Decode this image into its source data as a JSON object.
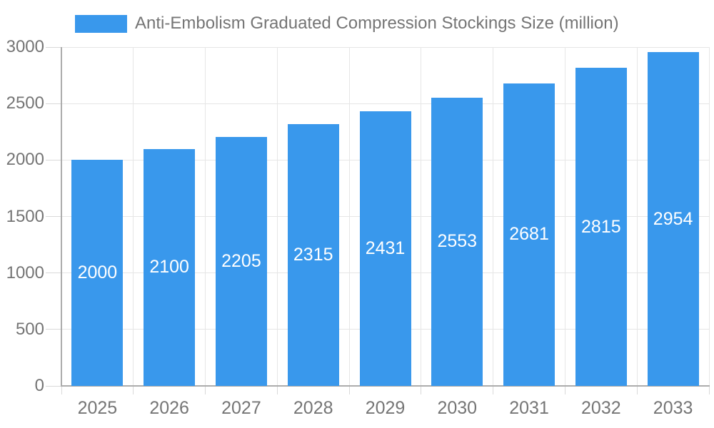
{
  "legend": {
    "label": "Anti-Embolism Graduated Compression Stockings Size (million)"
  },
  "chart_data": {
    "type": "bar",
    "title": "Anti-Embolism Graduated Compression Stockings Size (million)",
    "categories": [
      "2025",
      "2026",
      "2027",
      "2028",
      "2029",
      "2030",
      "2031",
      "2032",
      "2033"
    ],
    "values": [
      2000,
      2100,
      2205,
      2315,
      2431,
      2553,
      2681,
      2815,
      2954
    ],
    "series": [
      {
        "name": "Anti-Embolism Graduated Compression Stockings Size (million)",
        "values": [
          2000,
          2100,
          2205,
          2315,
          2431,
          2553,
          2681,
          2815,
          2954
        ]
      }
    ],
    "xlabel": "",
    "ylabel": "",
    "ylim": [
      0,
      3000
    ],
    "yticks": [
      0,
      500,
      1000,
      1500,
      2000,
      2500,
      3000
    ],
    "grid": true,
    "legend_position": "top",
    "value_label_position": "inside-center",
    "colors": {
      "bar": "#3998EC",
      "text": "#757575",
      "grid": "#E6E6E6",
      "tick": "#D9D9D9",
      "axis": "#ACACAC",
      "value_label": "#FFFFFF",
      "background": "#FFFFFF"
    }
  }
}
